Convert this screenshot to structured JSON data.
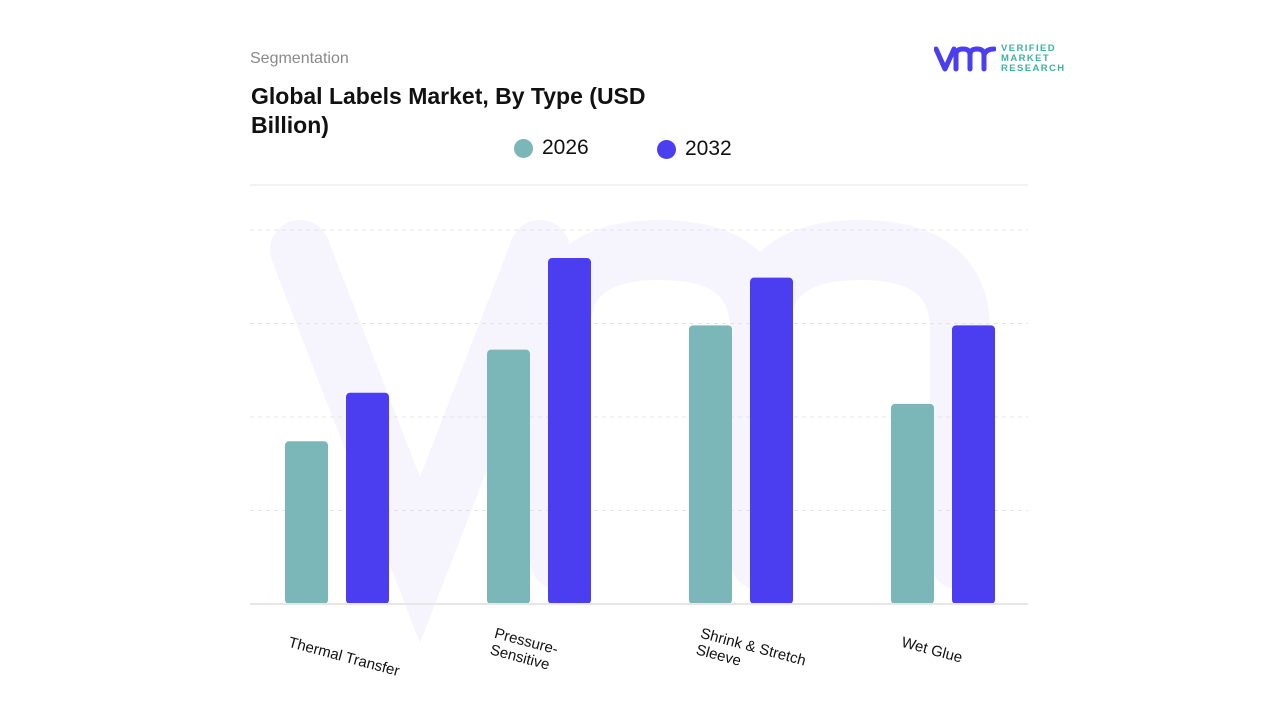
{
  "header": {
    "segment_label": "Segmentation",
    "title": "Global Labels Market, By Type (USD Billion)"
  },
  "logo": {
    "lines": [
      "VERIFIED",
      "MARKET",
      "RESEARCH"
    ],
    "colors": {
      "mark": "#4b3ef0",
      "text": "#3bb3a0"
    }
  },
  "chart_data": {
    "type": "bar",
    "title": "Global Labels Market, By Type (USD Billion)",
    "categories": [
      "Thermal Transfer",
      "Pressure-Sensitive",
      "Shrink & Stretch Sleeve",
      "Wet Glue"
    ],
    "category_lines": [
      [
        "Thermal Transfer"
      ],
      [
        "Pressure-",
        "Sensitive"
      ],
      [
        "Shrink & Stretch",
        "Sleeve"
      ],
      [
        "Wet Glue"
      ]
    ],
    "series": [
      {
        "name": "2026",
        "color": "#7bb6b9",
        "values": [
          1.74,
          2.72,
          2.98,
          2.14
        ]
      },
      {
        "name": "2032",
        "color": "#4b3ef0",
        "values": [
          2.26,
          3.7,
          3.49,
          2.98
        ]
      }
    ],
    "ylim": [
      0,
      4
    ],
    "y_axis_labels_shown": false,
    "grid": true,
    "legend_position": "top-center",
    "xlabel": "",
    "ylabel": ""
  }
}
